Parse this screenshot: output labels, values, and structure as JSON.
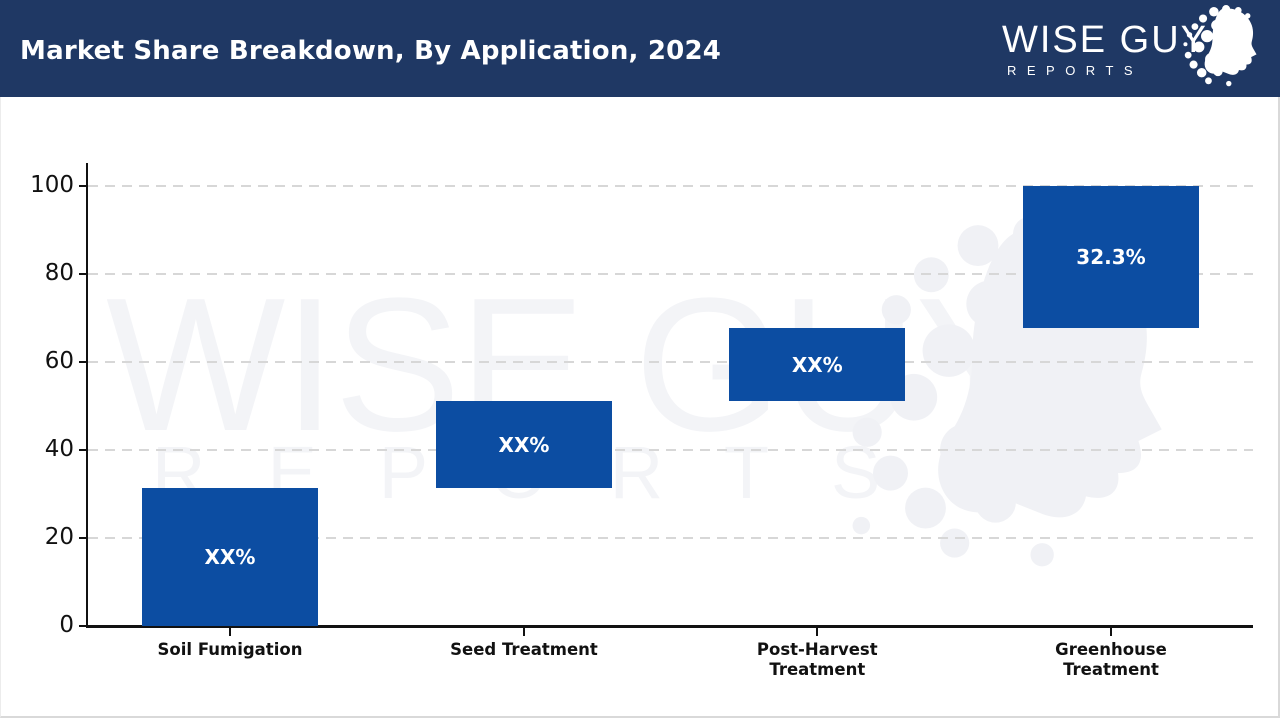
{
  "header": {
    "title": "Market Share Breakdown, By Application, 2024",
    "bg_color": "#1f3864",
    "logo": {
      "line1": "WISE GUY",
      "line2": "REPORTS"
    }
  },
  "watermark": {
    "line1": "WISE GUY",
    "line2": "REPORTS"
  },
  "chart_data": {
    "type": "bar",
    "subtype": "waterfall-floating-bars",
    "title": "Market Share Breakdown, By Application, 2024",
    "categories": [
      "Soil Fumigation",
      "Seed Treatment",
      "Post-Harvest Treatment",
      "Greenhouse Treatment"
    ],
    "segments": [
      {
        "category": "Soil Fumigation",
        "start": 0,
        "end": 31.4,
        "label": "XX%"
      },
      {
        "category": "Seed Treatment",
        "start": 31.4,
        "end": 51.0,
        "label": "XX%"
      },
      {
        "category": "Post-Harvest Treatment",
        "start": 51.0,
        "end": 67.7,
        "label": "XX%"
      },
      {
        "category": "Greenhouse Treatment",
        "start": 67.7,
        "end": 100,
        "label": "32.3%"
      }
    ],
    "y_ticks": [
      0,
      20,
      40,
      60,
      80,
      100
    ],
    "ylim": [
      0,
      100
    ],
    "xlabel": "",
    "ylabel": "",
    "legend": "none",
    "grid": "horizontal-dashed",
    "bar_color": "#0c4da2",
    "value_label_color": "#ffffff",
    "axis_color": "#111111",
    "gridline_color": "#d7d7d7"
  }
}
